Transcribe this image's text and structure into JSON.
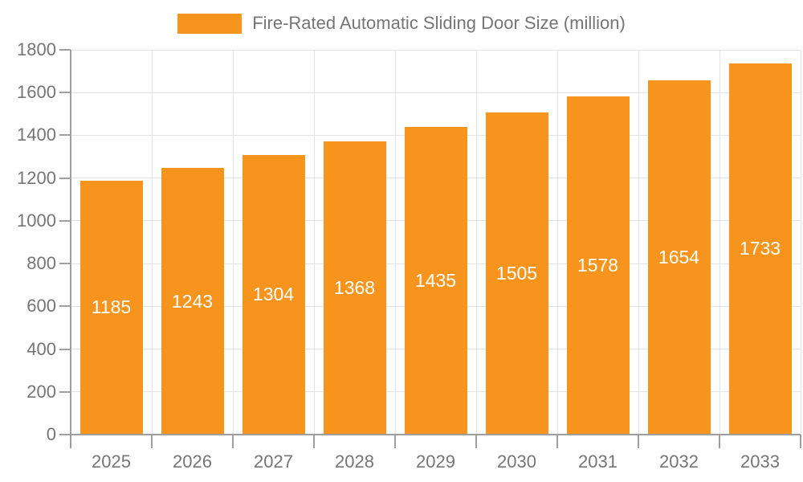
{
  "legend": {
    "label": "Fire-Rated Automatic Sliding Door Size (million)"
  },
  "chart_data": {
    "type": "bar",
    "title": "Fire-Rated Automatic Sliding Door Size (million)",
    "categories": [
      "2025",
      "2026",
      "2027",
      "2028",
      "2029",
      "2030",
      "2031",
      "2032",
      "2033"
    ],
    "values": [
      1185,
      1243,
      1304,
      1368,
      1435,
      1505,
      1578,
      1654,
      1733
    ],
    "xlabel": "",
    "ylabel": "",
    "ylim": [
      0,
      1800
    ],
    "ytick_step": 200,
    "grid": true,
    "legend_position": "top-center",
    "value_labels": "inside-center",
    "colors": {
      "bar": "#F7941E",
      "value_label": "#FFFFFF",
      "axis_text": "#757575",
      "grid_line": "#E4E4E4",
      "axis_line": "#9E9E9E"
    }
  }
}
